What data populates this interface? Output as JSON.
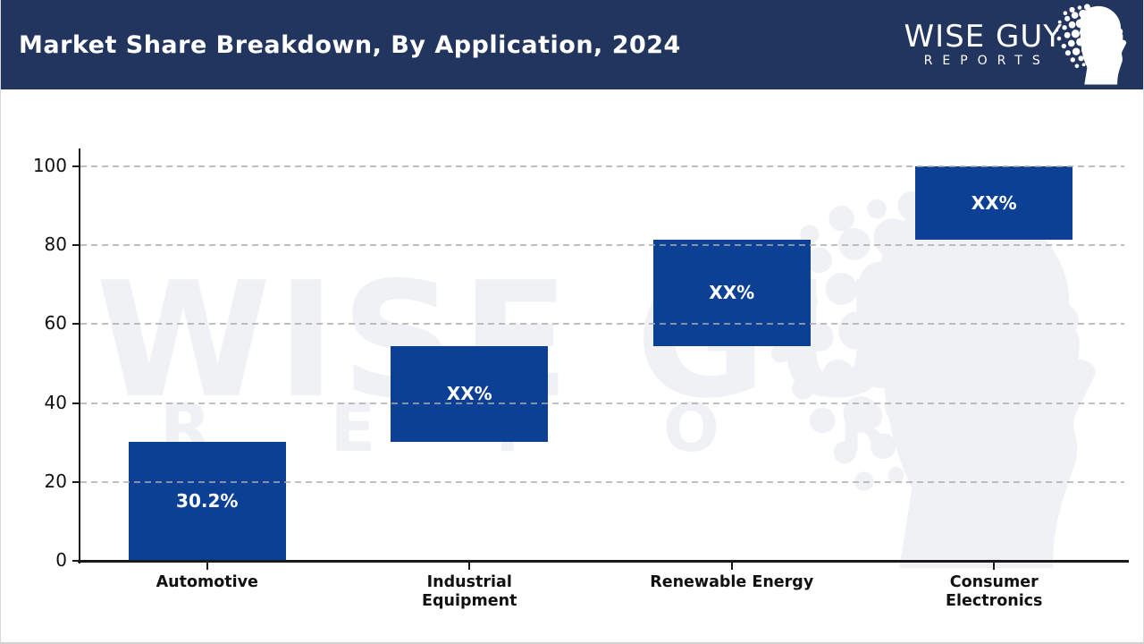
{
  "header": {
    "title": "Market Share Breakdown, By Application, 2024",
    "logo": {
      "line1": "WISE GUY",
      "line2": "REPORTS"
    }
  },
  "watermark": {
    "line1": "WISE GU",
    "line2": "R E P O R T S"
  },
  "chart_data": {
    "type": "bar",
    "variant": "waterfall",
    "title": "Market Share Breakdown, By Application, 2024",
    "categories": [
      "Automotive",
      "Industrial\nEquipment",
      "Renewable Energy",
      "Consumer\nElectronics"
    ],
    "segments": [
      {
        "category": "Automotive",
        "start": 0,
        "end": 30.2,
        "value_label": "30.2%"
      },
      {
        "category": "Industrial Equipment",
        "start": 30.2,
        "end": 54.5,
        "value_label": "XX%"
      },
      {
        "category": "Renewable Energy",
        "start": 54.5,
        "end": 81.5,
        "value_label": "XX%"
      },
      {
        "category": "Consumer Electronics",
        "start": 81.5,
        "end": 100,
        "value_label": "XX%"
      }
    ],
    "xlabel": "",
    "ylabel": "",
    "y_ticks": [
      0,
      20,
      40,
      60,
      80,
      100
    ],
    "y_tick_labels": [
      "0",
      "20",
      "40",
      "60",
      "80",
      "100"
    ],
    "ylim": [
      0,
      105
    ],
    "grid": "horizontal-dashed",
    "legend": "none",
    "colors": {
      "bar": "#0c4094",
      "bar_label": "#ffffff",
      "header_bg": "#21355f",
      "header_text": "#ffffff",
      "grid_line": "#aaaaaa",
      "axis": "#1a1a1a",
      "watermark": "#f0f1f4"
    }
  }
}
